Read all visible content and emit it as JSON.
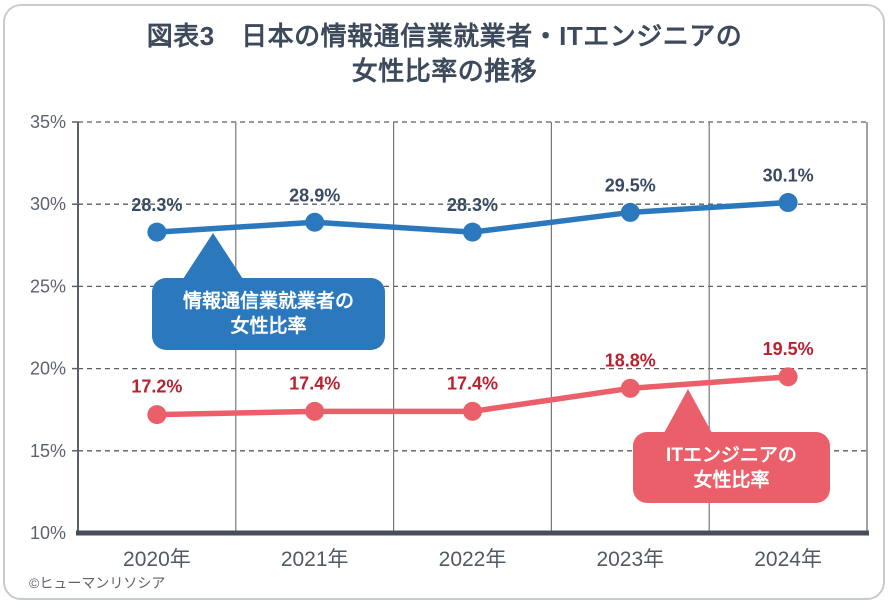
{
  "figure": {
    "title_line1": "図表3　日本の情報通信業就業者・ITエンジニアの",
    "title_line2": "女性比率の推移",
    "copyright": "©ヒューマンリソシア"
  },
  "chart_data": {
    "type": "line",
    "title": "図表3 日本の情報通信業就業者・ITエンジニアの女性比率の推移",
    "categories": [
      "2020年",
      "2021年",
      "2022年",
      "2023年",
      "2024年"
    ],
    "series": [
      {
        "name": "情報通信業就業者の女性比率",
        "values": [
          28.3,
          28.9,
          28.3,
          29.5,
          30.1
        ],
        "labels": [
          "28.3%",
          "28.9%",
          "28.3%",
          "29.5%",
          "30.1%"
        ],
        "color": "#2b79bc",
        "label_color": "#3a4a63"
      },
      {
        "name": "ITエンジニアの女性比率",
        "values": [
          17.2,
          17.4,
          17.4,
          18.8,
          19.5
        ],
        "labels": [
          "17.2%",
          "17.4%",
          "17.4%",
          "18.8%",
          "19.5%"
        ],
        "color": "#eb5f6a",
        "label_color": "#ba2130"
      }
    ],
    "xlabel": "",
    "ylabel": "",
    "ylim": [
      10,
      35
    ],
    "ytick_step": 5,
    "ytick_labels": [
      "10%",
      "15%",
      "20%",
      "25%",
      "30%",
      "35%"
    ],
    "grid": "horizontal dashed gridlines, vertical solid category-boundary lines",
    "legend_position": "callouts inside plot",
    "callouts": [
      {
        "text_line1": "情報通信業就業者の",
        "text_line2": "女性比率",
        "color": "#2b79bc"
      },
      {
        "text_line1": "ITエンジニアの",
        "text_line2": "女性比率",
        "color": "#eb5f6a"
      }
    ]
  }
}
